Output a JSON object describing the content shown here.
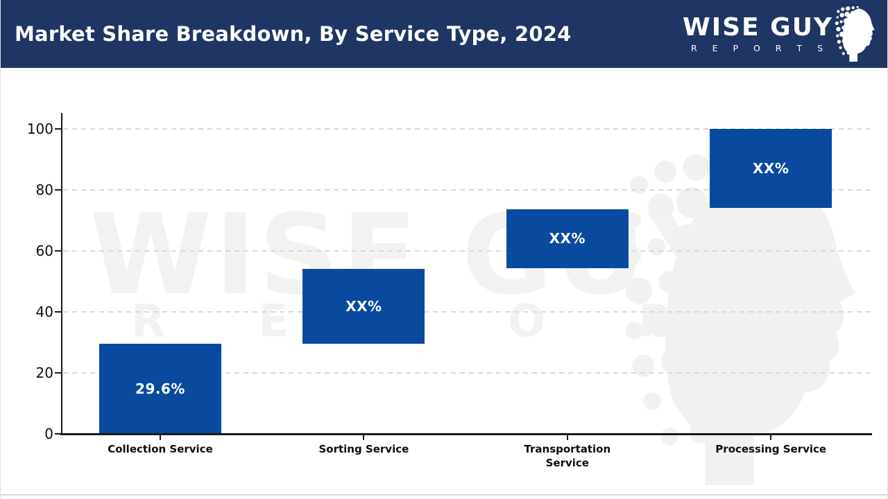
{
  "header": {
    "title": "Market Share Breakdown, By Service Type, 2024",
    "brand_line1": "WISE GUY",
    "brand_line2": "R E P O R T S"
  },
  "watermark": {
    "line1": "WISE GUY",
    "line2": "R E P O R T S"
  },
  "colors": {
    "header_bg": "#1f3563",
    "bar": "#0a4a9e",
    "grid": "#d9d9d9",
    "axis": "#1a1a1a",
    "bar_label": "#ffffff",
    "watermark": "#f2f2f2"
  },
  "chart_data": {
    "type": "bar",
    "subtype": "waterfall",
    "title": "Market Share Breakdown, By Service Type, 2024",
    "xlabel": "",
    "ylabel": "",
    "ylim": [
      0,
      100
    ],
    "yticks": [
      0,
      20,
      40,
      60,
      80,
      100
    ],
    "grid": "horizontal-dashed",
    "legend": "none",
    "categories": [
      "Collection Service",
      "Sorting Service",
      "Transportation Service",
      "Processing Service"
    ],
    "segments": [
      {
        "category": "Collection Service",
        "start": 0,
        "end": 29.6,
        "label": "29.6%"
      },
      {
        "category": "Sorting Service",
        "start": 29.6,
        "end": 54.0,
        "label": "XX%"
      },
      {
        "category": "Transportation Service",
        "start": 54.3,
        "end": 73.7,
        "label": "XX%"
      },
      {
        "category": "Processing Service",
        "start": 74.0,
        "end": 100,
        "label": "XX%"
      }
    ]
  }
}
